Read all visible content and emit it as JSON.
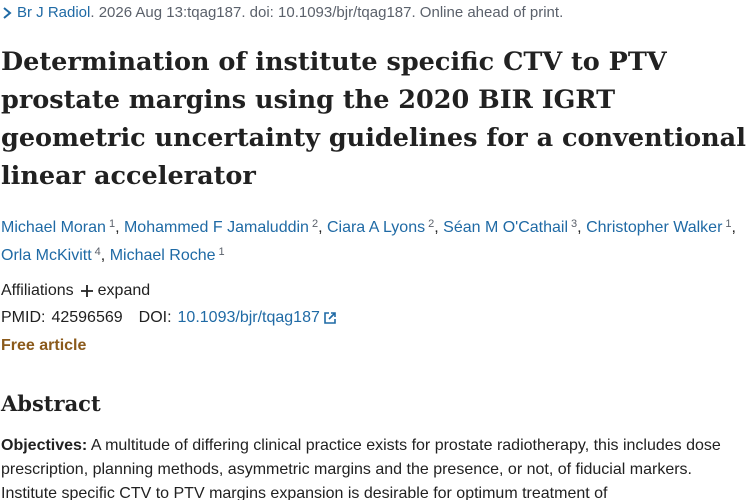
{
  "citation": {
    "journal": "Br J Radiol",
    "details": ". 2026 Aug 13:tqag187. doi: 10.1093/bjr/tqag187. Online ahead of print."
  },
  "title": "Determination of institute specific CTV to PTV prostate margins using the 2020 BIR IGRT geometric uncertainty guidelines for a conventional linear accelerator",
  "authors": [
    {
      "name": "Michael Moran",
      "affiliation": "1",
      "separator": ","
    },
    {
      "name": "Mohammed F Jamaluddin",
      "affiliation": "2",
      "separator": ","
    },
    {
      "name": "Ciara A Lyons",
      "affiliation": "2",
      "separator": ","
    },
    {
      "name": "Séan M O'Cathail",
      "affiliation": "3",
      "separator": ","
    },
    {
      "name": "Christopher Walker",
      "affiliation": "1",
      "separator": ","
    },
    {
      "name": "Orla McKivitt",
      "affiliation": "4",
      "separator": ","
    },
    {
      "name": "Michael Roche",
      "affiliation": "1"
    }
  ],
  "affiliations": {
    "label": "Affiliations",
    "expand": "expand"
  },
  "identifiers": {
    "pmid_label": "PMID:",
    "pmid": "42596569",
    "doi_label": "DOI:",
    "doi": "10.1093/bjr/tqag187"
  },
  "free_article": "Free article",
  "abstract": {
    "heading": "Abstract",
    "objectives_label": "Objectives:",
    "objectives_text": "A multitude of differing clinical practice exists for prostate radiotherapy, this includes dose prescription, planning methods, asymmetric margins and the presence, or not, of fiducial markers. Institute specific CTV to PTV margins expansion is desirable for optimum treatment of"
  }
}
